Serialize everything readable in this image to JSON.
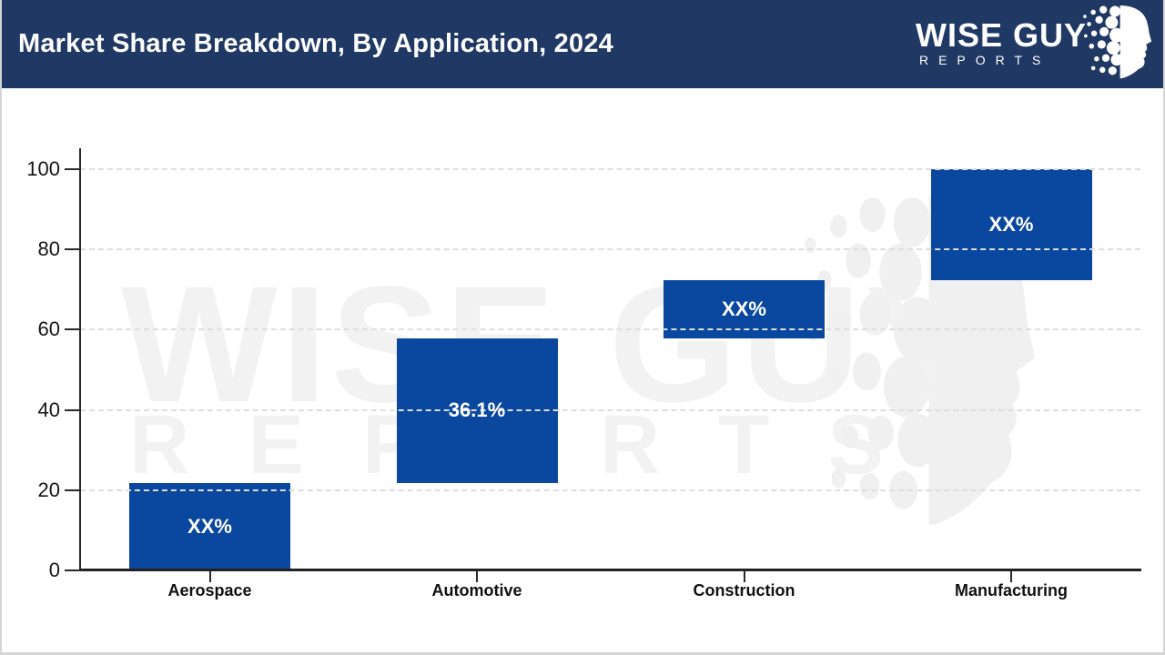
{
  "header": {
    "title": "Market Share Breakdown, By Application, 2024",
    "brand": {
      "name": "WISE GUY",
      "subtitle": "REPORTS"
    },
    "bg_color": "#203864"
  },
  "watermark": {
    "line1": "WISE GUY",
    "line2": "REPORTS"
  },
  "chart_data": {
    "type": "bar",
    "subtype": "waterfall-stacked",
    "title": "Market Share Breakdown, By Application, 2024",
    "categories": [
      "Aerospace",
      "Automotive",
      "Construction",
      "Manufacturing"
    ],
    "segments": [
      {
        "category": "Aerospace",
        "start": 0,
        "end": 21.8,
        "label": "XX%"
      },
      {
        "category": "Automotive",
        "start": 21.8,
        "end": 57.9,
        "label": "36.1%"
      },
      {
        "category": "Construction",
        "start": 57.9,
        "end": 72.3,
        "label": "XX%"
      },
      {
        "category": "Manufacturing",
        "start": 72.3,
        "end": 100,
        "label": "XX%"
      }
    ],
    "values_visible": {
      "Automotive": 36.1
    },
    "xlabel": "",
    "ylabel": "",
    "ylim": [
      0,
      100
    ],
    "yticks": [
      0,
      20,
      40,
      60,
      80,
      100
    ],
    "grid": "horizontal-dashed",
    "legend": "none",
    "bar_color": "#0a479e",
    "axis_color": "#2a2a2a",
    "gridline_color": "#dedede",
    "label_color_inside": "#ffffff"
  }
}
